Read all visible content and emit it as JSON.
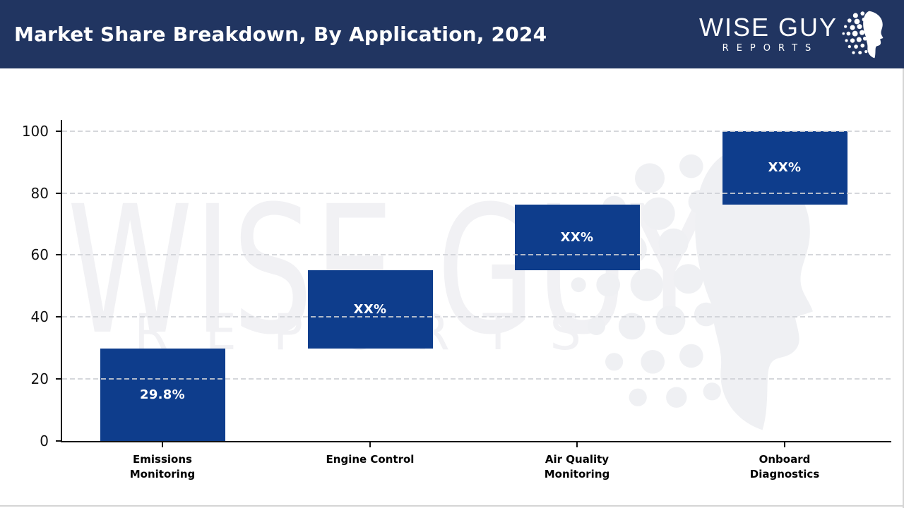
{
  "header": {
    "title": "Market Share Breakdown, By Application, 2024",
    "logo": {
      "line1": "WISE GUY",
      "line2": "REPORTS"
    }
  },
  "watermark": {
    "line1": "WISE GUY",
    "line2": "REPORTS"
  },
  "colors": {
    "header_bg": "#213561",
    "bar": "#0e3d8c",
    "grid": "#d9d9d9",
    "axis": "#111111",
    "watermark": "#f1f1f4"
  },
  "chart_data": {
    "type": "bar",
    "subtype": "waterfall",
    "title": "Market Share Breakdown, By Application, 2024",
    "categories": [
      "Emissions Monitoring",
      "Engine Control",
      "Air Quality Monitoring",
      "Onboard Diagnostics"
    ],
    "bars": [
      {
        "category": "Emissions Monitoring",
        "start": 0,
        "end": 29.8,
        "label": "29.8%"
      },
      {
        "category": "Engine Control",
        "start": 29.8,
        "end": 55.1,
        "label": "XX%"
      },
      {
        "category": "Air Quality Monitoring",
        "start": 55.1,
        "end": 76.3,
        "label": "XX%"
      },
      {
        "category": "Onboard Diagnostics",
        "start": 76.3,
        "end": 100,
        "label": "XX%"
      }
    ],
    "y_ticks": [
      0,
      20,
      40,
      60,
      80,
      100
    ],
    "ylim": [
      0,
      103.5
    ],
    "xlabel": "",
    "ylabel": "",
    "grid": "horizontal-dashed",
    "gridlines_above_bars": true,
    "legend": "none"
  }
}
